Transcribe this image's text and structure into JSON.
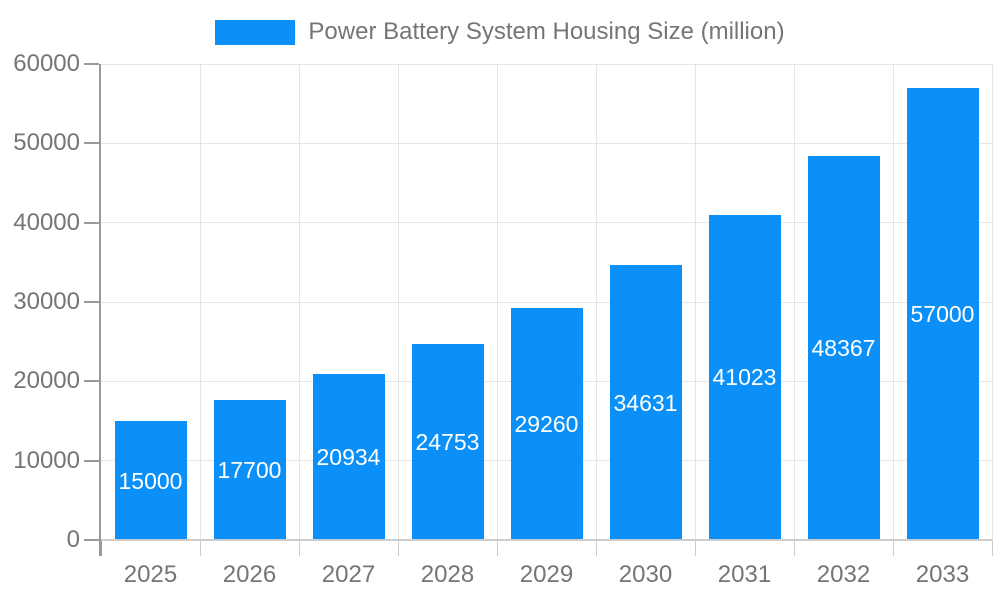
{
  "chart_data": {
    "type": "bar",
    "title": "Power Battery System Housing Size (million)",
    "categories": [
      "2025",
      "2026",
      "2027",
      "2028",
      "2029",
      "2030",
      "2031",
      "2032",
      "2033"
    ],
    "values": [
      15000,
      17700,
      20934,
      24753,
      29260,
      34631,
      41023,
      48367,
      57000
    ],
    "bar_labels": [
      "15000",
      "17700",
      "20934",
      "24753",
      "29260",
      "34631",
      "41023",
      "48367",
      "57000"
    ],
    "xlabel": "",
    "ylabel": "",
    "ylim": [
      0,
      60000
    ],
    "y_tick_values": [
      0,
      10000,
      20000,
      30000,
      40000,
      50000,
      60000
    ],
    "y_tick_labels": [
      "0",
      "10000",
      "20000",
      "30000",
      "40000",
      "50000",
      "60000"
    ],
    "grid": true,
    "legend_position": "top-center",
    "colors": {
      "bar": "#0A90F8",
      "bar_label_text": "#FFFFFF",
      "axis_text": "#757575",
      "gridline": "#E6E6E6",
      "y_axis_line": "#999999",
      "x_axis_line": "#CCCCCC",
      "background": "#FFFFFF"
    }
  }
}
